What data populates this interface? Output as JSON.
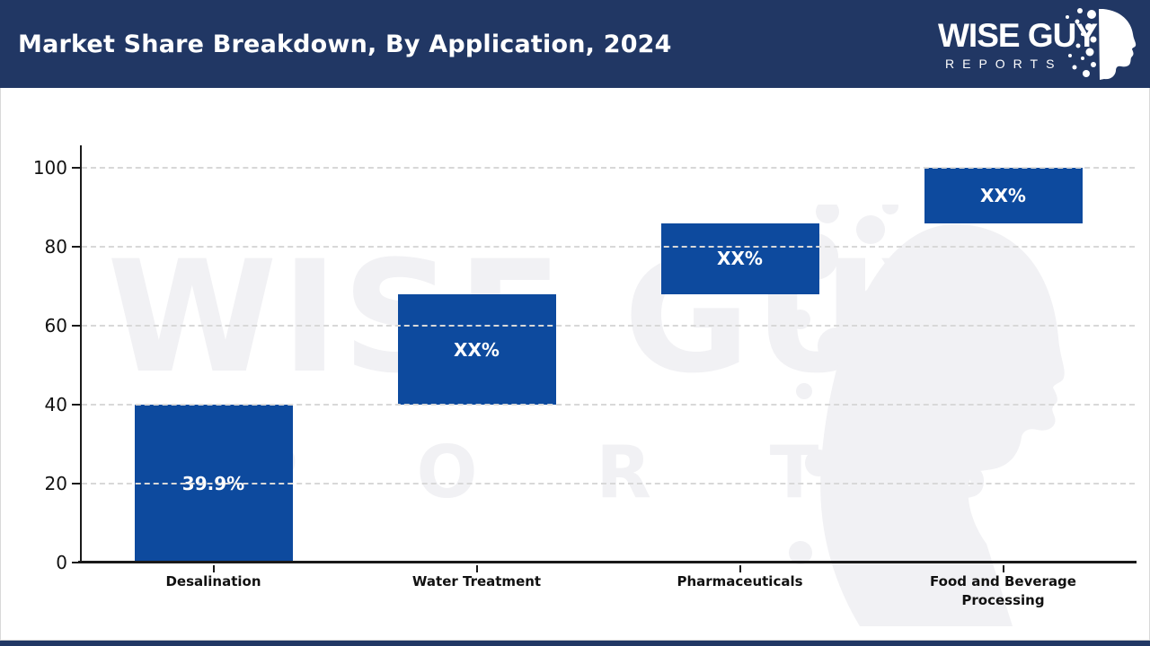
{
  "header": {
    "title": "Market Share Breakdown, By Application, 2024",
    "logo": {
      "name": "WISE GUY",
      "sub": "R E P O R T S"
    }
  },
  "watermark": {
    "line1": "WISE GUY",
    "line2": "P O R T S"
  },
  "colors": {
    "header_bg": "#213764",
    "bar_blue": "#0d4a9e",
    "watermark_gray": "#f1f1f4",
    "gridline_gray": "#d8d8d8",
    "axis_black": "#1a1a1a",
    "bar_label_white": "#ffffff"
  },
  "chart_data": {
    "type": "bar",
    "subtype": "waterfall",
    "title": "Market Share Breakdown, By Application, 2024",
    "categories": [
      "Desalination",
      "Water Treatment",
      "Pharmaceuticals",
      "Food and Beverage Processing"
    ],
    "series": [
      {
        "name": "Market Share",
        "segments": [
          {
            "category": "Desalination",
            "start": 0,
            "end": 39.9,
            "label": "39.9%"
          },
          {
            "category": "Water Treatment",
            "start": 39.9,
            "end": 68,
            "label": "XX%"
          },
          {
            "category": "Pharmaceuticals",
            "start": 68,
            "end": 86,
            "label": "XX%"
          },
          {
            "category": "Food and Beverage Processing",
            "start": 86,
            "end": 100,
            "label": "XX%"
          }
        ]
      }
    ],
    "xlabel": "",
    "ylabel": "",
    "ylim": [
      0,
      100
    ],
    "yticks": [
      0,
      20,
      40,
      60,
      80,
      100
    ],
    "grid": "horizontal-dashed",
    "legend": "none"
  }
}
